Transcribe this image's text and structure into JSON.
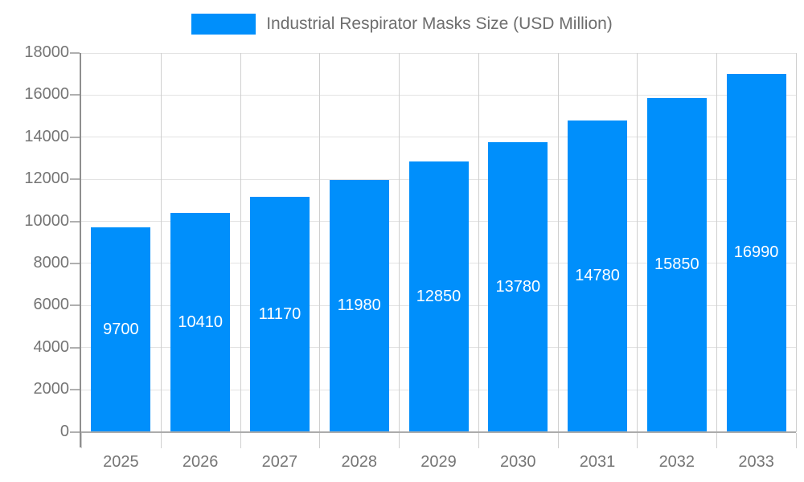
{
  "legend": {
    "label": "Industrial Respirator Masks Size (USD Million)"
  },
  "colors": {
    "bar": "#008FFB",
    "grid_horizontal": "#e3e3e3",
    "grid_vertical": "#cfcfcf",
    "axis_line": "#8f8f8f",
    "baseline": "#ababab",
    "y_tick": "#b0b0b0",
    "x_tick": "#cfcfcf",
    "axis_label": "#757575",
    "legend_text": "#6e6e6e",
    "data_label": "#ffffff",
    "background": "#ffffff"
  },
  "chart_data": {
    "type": "bar",
    "title": "Industrial Respirator Masks Size (USD Million)",
    "categories": [
      "2025",
      "2026",
      "2027",
      "2028",
      "2029",
      "2030",
      "2031",
      "2032",
      "2033"
    ],
    "values": [
      9700,
      10410,
      11170,
      11980,
      12850,
      13780,
      14780,
      15850,
      16990
    ],
    "data_labels": [
      9700,
      10410,
      11170,
      11980,
      12850,
      13780,
      14780,
      15850,
      16990
    ],
    "ytick_labels": [
      "0",
      "2000",
      "4000",
      "6000",
      "8000",
      "10000",
      "12000",
      "14000",
      "16000",
      "18000"
    ],
    "xlabel": "",
    "ylabel": "",
    "ylim": [
      0,
      18000
    ],
    "ytick_step": 2000,
    "grid": "both",
    "legend_position": "top-center",
    "data_label_position": "inside-center"
  }
}
